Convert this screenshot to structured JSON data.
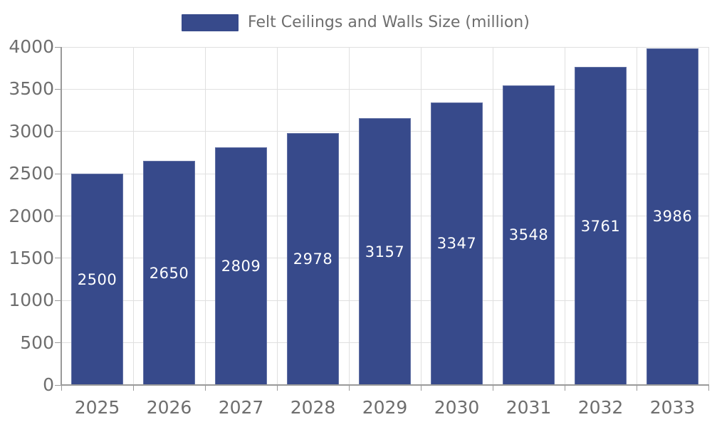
{
  "legend": {
    "label": "Felt Ceilings and Walls Size (million)"
  },
  "chart_data": {
    "type": "bar",
    "title": "Felt Ceilings and Walls Size (million)",
    "series_name": "Felt Ceilings and Walls Size (million)",
    "categories": [
      "2025",
      "2026",
      "2027",
      "2028",
      "2029",
      "2030",
      "2031",
      "2032",
      "2033"
    ],
    "values": [
      2500,
      2650,
      2809,
      2978,
      3157,
      3347,
      3548,
      3761,
      3986
    ],
    "xlabel": "",
    "ylabel": "",
    "ylim": [
      0,
      4000
    ],
    "ytick_step": 500,
    "grid": true,
    "legend_position": "top",
    "bar_labels_inside": true,
    "colors": {
      "bar": "#374A8B",
      "bar_label": "#FFFFFF",
      "axis_line": "#9A9A9A",
      "grid_line": "#E0E0E0",
      "tick_label": "#6E6E6E",
      "legend_text": "#6E6E6E",
      "background": "#FFFFFF"
    }
  }
}
